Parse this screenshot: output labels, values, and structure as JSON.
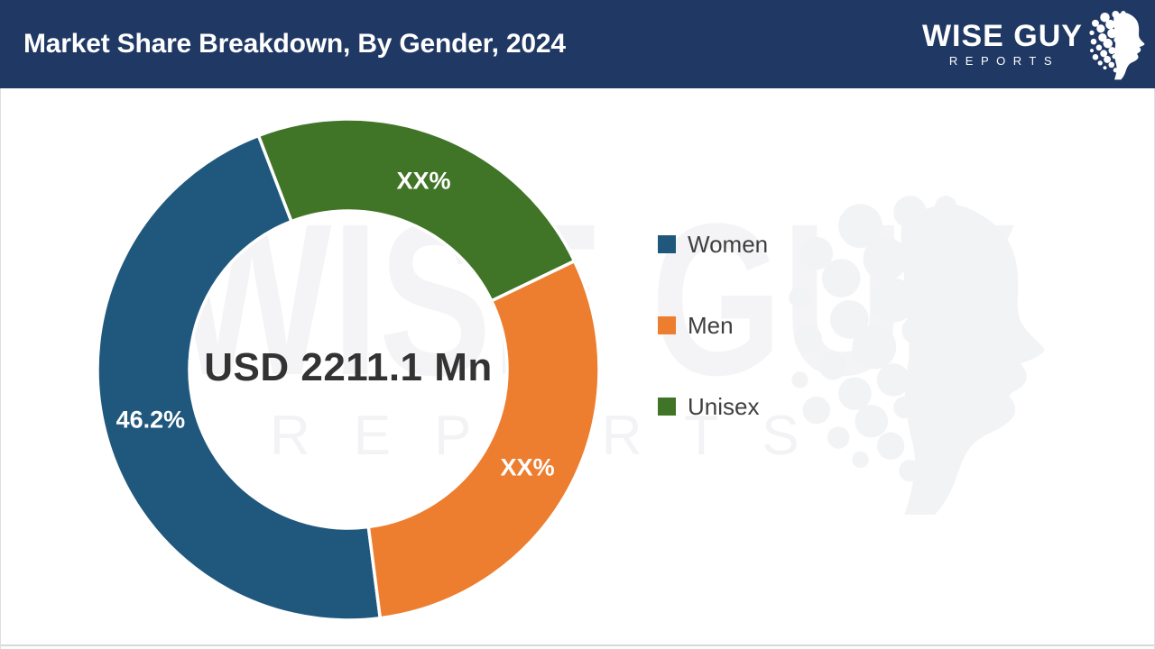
{
  "header": {
    "title": "Market Share Breakdown, By Gender, 2024",
    "brand": {
      "name_top": "WISE GUY",
      "name_bottom": "REPORTS"
    }
  },
  "watermark": {
    "line1": "WISE GUY",
    "line2": "REPORTS"
  },
  "chart_data": {
    "type": "pie",
    "donut": true,
    "title": "Market Share Breakdown, By Gender, 2024",
    "center_label": "USD 2211.1 Mn",
    "legend": [
      "Women",
      "Men",
      "Unisex"
    ],
    "legend_position": "right",
    "start_angle_deg": 172.7,
    "clockwise": true,
    "draw_order": [
      0,
      2,
      1
    ],
    "series": [
      {
        "name": "Women",
        "displayed_value": "46.2%",
        "share_pct_est": 46.2,
        "color": "#20587D"
      },
      {
        "name": "Men",
        "displayed_value": "XX%",
        "share_pct_est": 30.1,
        "color": "#ED7D2F"
      },
      {
        "name": "Unisex",
        "displayed_value": "XX%",
        "share_pct_est": 23.7,
        "color": "#407426"
      }
    ]
  },
  "colors": {
    "header_navy": "#1F3864",
    "watermark_gray": "#F3F4F6",
    "center_text": "#333333",
    "legend_text": "#3F3F3F",
    "segment_gap": "#FFFFFF",
    "bottom_rule": "#D8D8D8"
  }
}
